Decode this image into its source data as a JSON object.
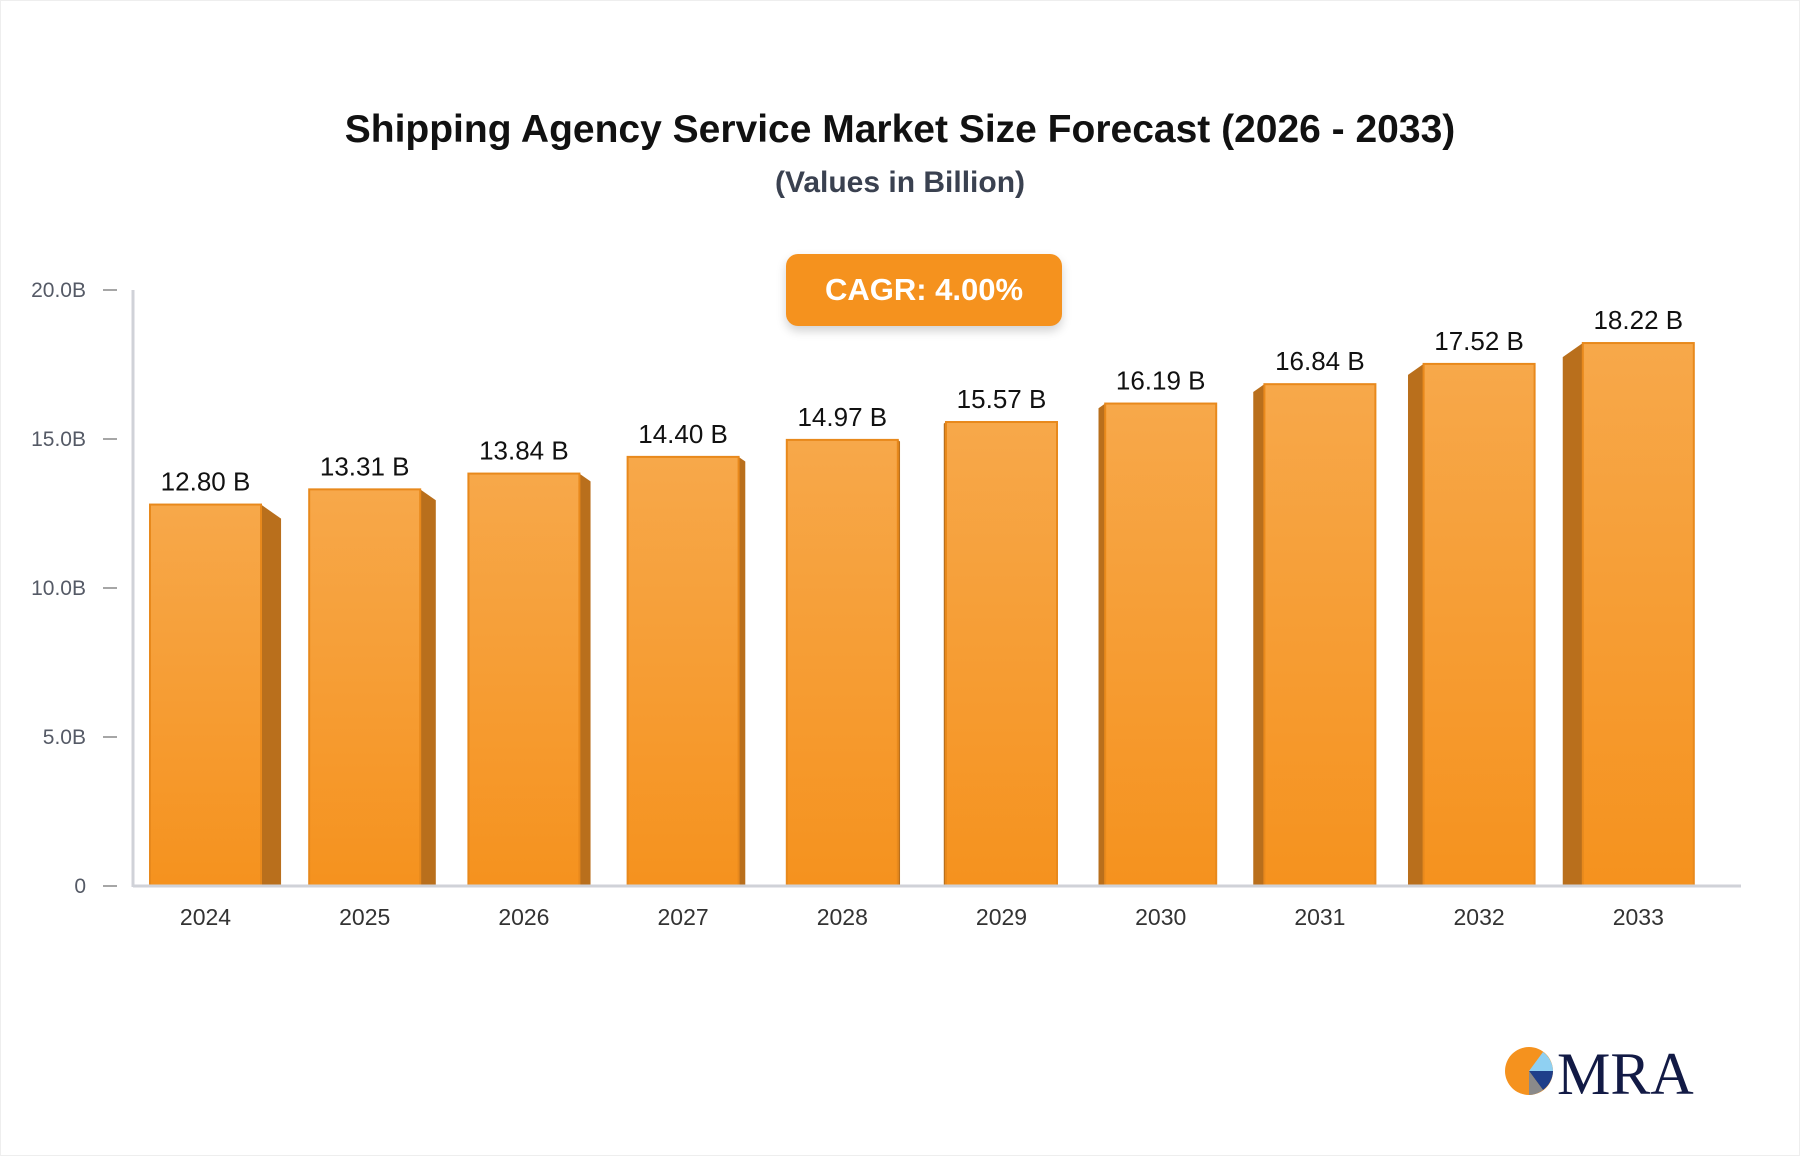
{
  "title": "Shipping Agency Service Market Size Forecast (2026 - 2033)",
  "subtitle": "(Values in Billion)",
  "cagr_label": "CAGR: 4.00%",
  "logo_text": "MRA",
  "colors": {
    "bar_top": "#f7a84a",
    "bar_bottom": "#f5921e",
    "bar_side": "#b96f1c",
    "badge": "#f5921e",
    "axis": "#d0d2d8"
  },
  "chart_data": {
    "type": "bar",
    "title": "Shipping Agency Service Market Size Forecast (2026 - 2033)",
    "subtitle": "(Values in Billion)",
    "categories": [
      "2024",
      "2025",
      "2026",
      "2027",
      "2028",
      "2029",
      "2030",
      "2031",
      "2032",
      "2033"
    ],
    "values": [
      12.8,
      13.31,
      13.84,
      14.4,
      14.97,
      15.57,
      16.19,
      16.84,
      17.52,
      18.22
    ],
    "data_labels": [
      "12.80 B",
      "13.31 B",
      "13.84 B",
      "14.40 B",
      "14.97 B",
      "15.57 B",
      "16.19 B",
      "16.84 B",
      "17.52 B",
      "18.22 B"
    ],
    "yticks": [
      0,
      5,
      10,
      15,
      20
    ],
    "ytick_labels": [
      "0",
      "5.0B",
      "10.0B",
      "15.0B",
      "20.0B"
    ],
    "ylim": [
      0,
      20
    ],
    "xlabel": "",
    "ylabel": "",
    "grid": false
  }
}
